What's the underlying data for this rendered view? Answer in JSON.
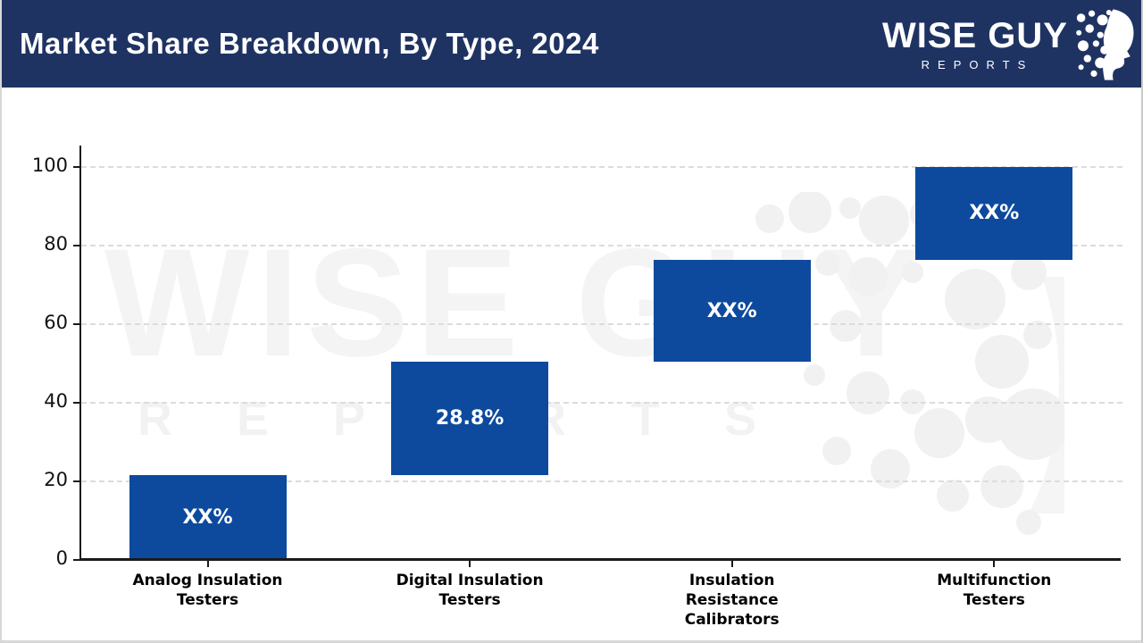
{
  "header": {
    "title": "Market Share Breakdown, By Type, 2024",
    "logo": {
      "line1": "WISE GUY",
      "line2": "REPORTS"
    }
  },
  "watermark": {
    "line1": "WISE GUY",
    "line2": "REPORTS"
  },
  "colors": {
    "header_bg": "#1f3363",
    "bar_color": "#0d4a9e",
    "grid_color": "#dcdcdc",
    "axis_color": "#1a1a1a",
    "bar_label_color": "#ffffff",
    "watermark_color": "#f4f4f4"
  },
  "chart_data": {
    "type": "bar",
    "subtype": "floating-waterfall",
    "title": "Market Share Breakdown, By Type, 2024",
    "categories": [
      "Analog Insulation\nTesters",
      "Digital Insulation\nTesters",
      "Insulation\nResistance\nCalibrators",
      "Multifunction\nTesters"
    ],
    "bars": [
      {
        "category": "Analog Insulation\nTesters",
        "start": 0,
        "end": 21.6,
        "value": 21.6,
        "label": "XX%"
      },
      {
        "category": "Digital Insulation\nTesters",
        "start": 21.6,
        "end": 50.4,
        "value": 28.8,
        "label": "28.8%"
      },
      {
        "category": "Insulation\nResistance\nCalibrators",
        "start": 50.4,
        "end": 76.4,
        "value": 26.0,
        "label": "XX%"
      },
      {
        "category": "Multifunction\nTesters",
        "start": 76.4,
        "end": 100,
        "value": 23.6,
        "label": "XX%"
      }
    ],
    "yticks": [
      0,
      20,
      40,
      60,
      80,
      100
    ],
    "ylim": [
      0,
      105
    ],
    "xlabel": "",
    "ylabel": "",
    "grid": {
      "horizontal": true,
      "style": "dashed",
      "color": "#dcdcdc"
    },
    "legend": null,
    "bar_color": "#0d4a9e"
  }
}
